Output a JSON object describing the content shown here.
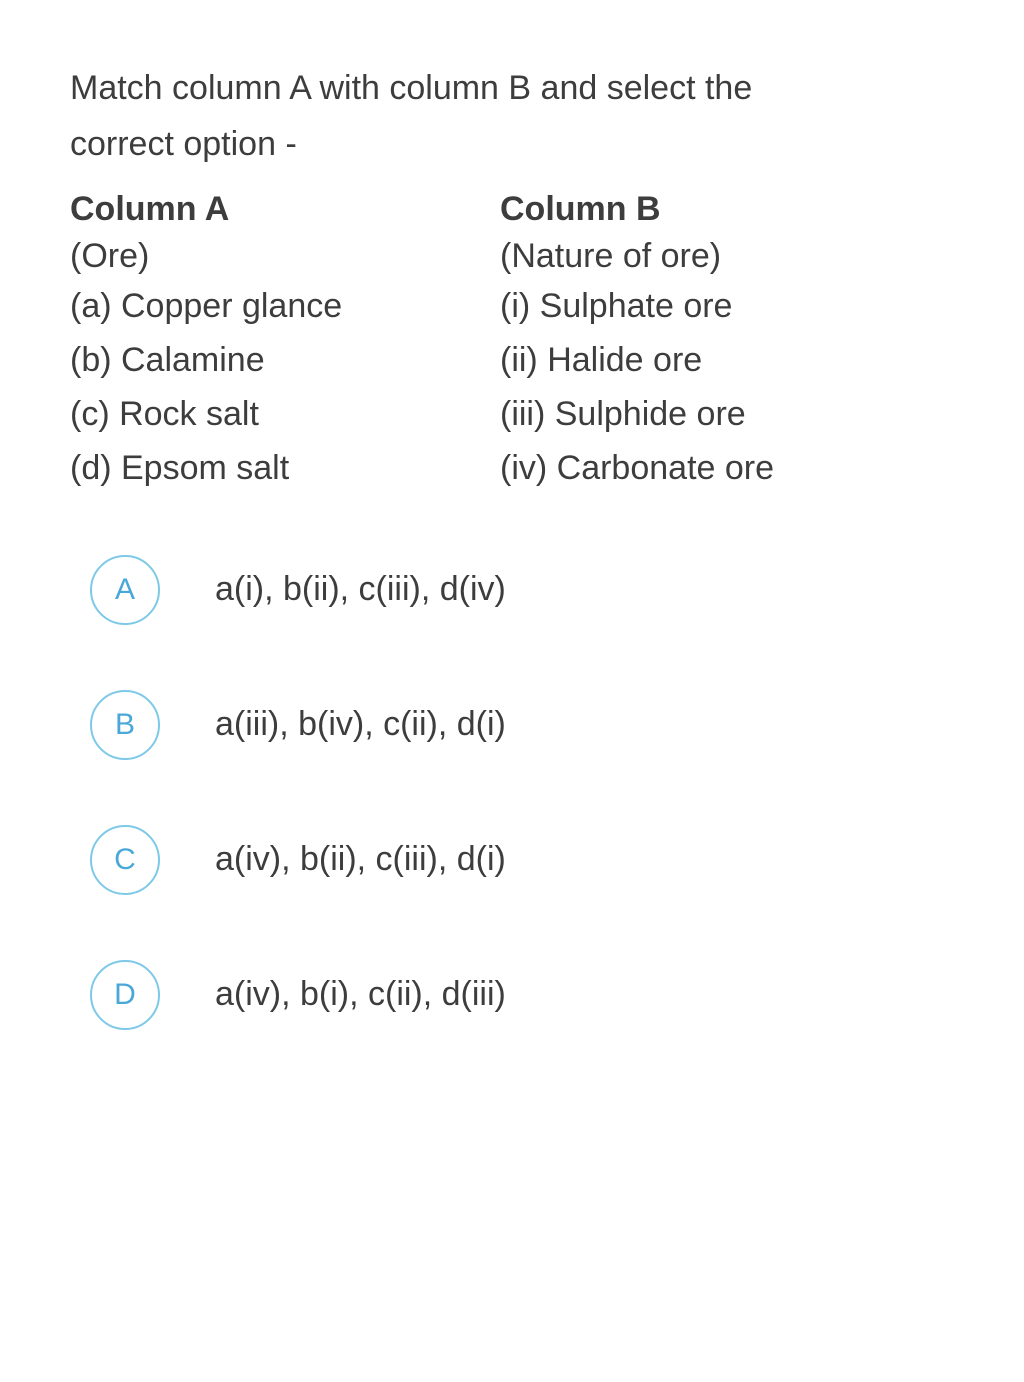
{
  "question": {
    "text_line1": "Match column A with column B and select the",
    "text_line2": "correct option -"
  },
  "columnA": {
    "header": "Column A",
    "subheader": "(Ore)",
    "items": [
      "(a) Copper glance",
      "(b) Calamine",
      "(c) Rock salt",
      "(d) Epsom salt"
    ]
  },
  "columnB": {
    "header": "Column B",
    "subheader": "(Nature of ore)",
    "items": [
      "(i) Sulphate ore",
      "(ii) Halide ore",
      "(iii) Sulphide ore",
      "(iv) Carbonate ore"
    ]
  },
  "options": [
    {
      "letter": "A",
      "text": "a(i), b(ii), c(iii), d(iv)"
    },
    {
      "letter": "B",
      "text": "a(iii), b(iv), c(ii), d(i)"
    },
    {
      "letter": "C",
      "text": "a(iv), b(ii), c(iii), d(i)"
    },
    {
      "letter": "D",
      "text": "a(iv), b(i), c(ii), d(iii)"
    }
  ],
  "styling": {
    "font_family": "Arial",
    "text_color": "#3d3d3d",
    "option_circle_border_color": "#7ec9e8",
    "option_letter_color": "#4aa8d8",
    "background_color": "#ffffff",
    "question_fontsize": 34,
    "column_fontsize": 34,
    "option_fontsize": 34,
    "option_letter_fontsize": 30,
    "circle_size": 70
  }
}
